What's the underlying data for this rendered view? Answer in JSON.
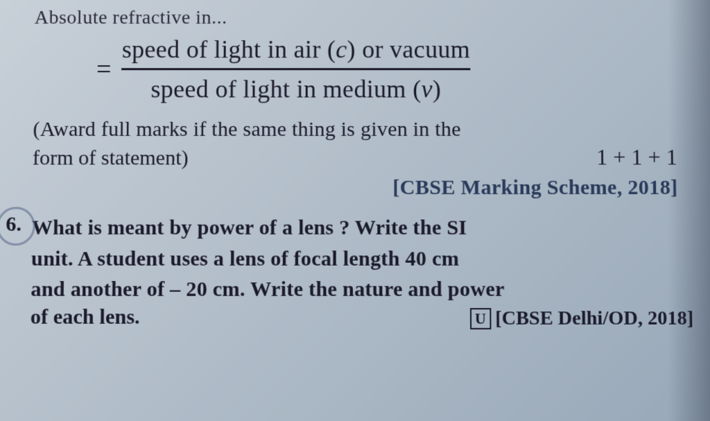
{
  "partial_header": "Absolute refractive in...",
  "formula": {
    "equals": "=",
    "numerator_pre": "speed of light in air (",
    "numerator_var": "c",
    "numerator_post": ") or vacuum",
    "denominator_pre": "speed of light in medium (",
    "denominator_var": "v",
    "denominator_post": ")"
  },
  "award_note_line1": "(Award full marks if the same thing is given in the",
  "award_note_line2": "form of statement)",
  "marks_breakdown": "1 + 1 + 1",
  "marking_scheme": "[CBSE Marking Scheme, 2018]",
  "question": {
    "number": ". 6.",
    "line1": "What is meant by power of a lens ? Write the SI",
    "line2": "unit. A student uses a lens of focal length 40 cm",
    "line3": "and another of – 20 cm. Write the nature and power",
    "line4": "of each lens."
  },
  "source": {
    "symbol": "U",
    "reference": "[CBSE Delhi/OD, 2018]"
  },
  "colors": {
    "text": "#1a1a2a",
    "scheme_text": "#2a3a5a",
    "background_light": "#c8d0d8",
    "background_dark": "#98a8b8",
    "circle": "#5a6a8a"
  }
}
